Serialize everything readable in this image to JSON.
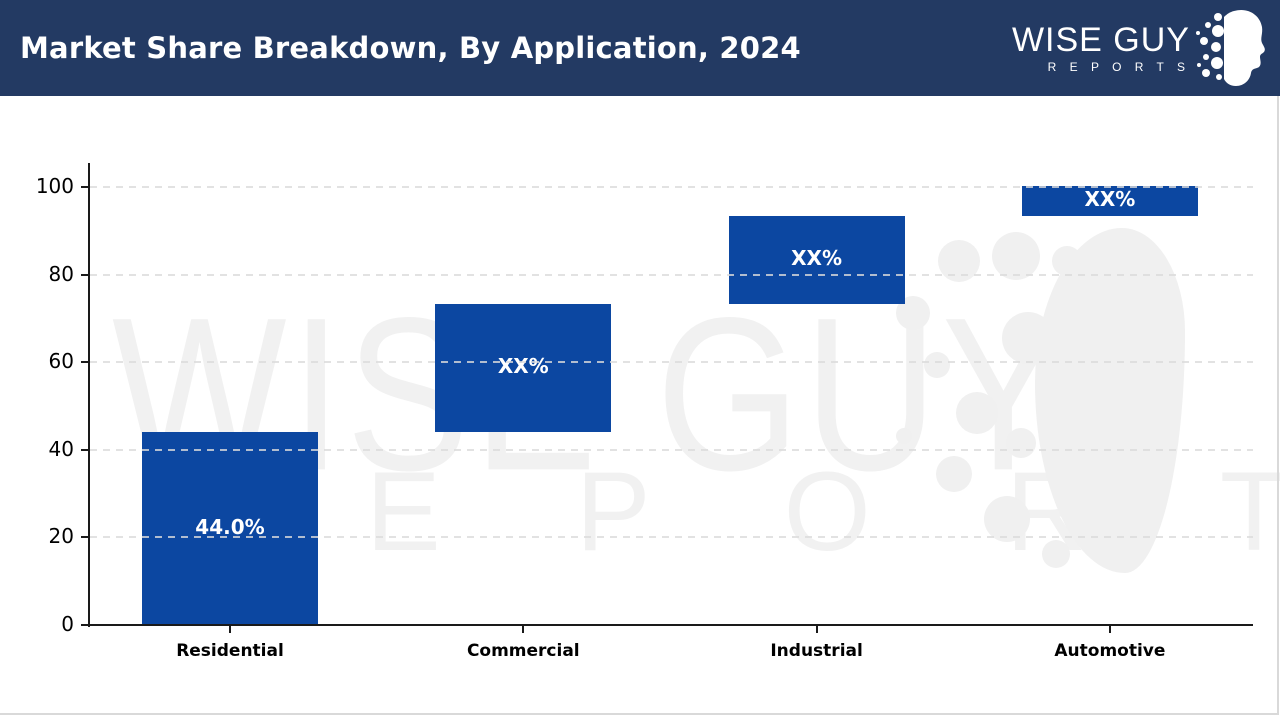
{
  "header": {
    "title": "Market Share Breakdown, By Application, 2024",
    "logo_line1": "WISE GUY",
    "logo_line2": "R E P O R T S"
  },
  "watermark": {
    "line1": "WISE GUY",
    "line2": "R E P O R T S"
  },
  "colors": {
    "header_bg": "#233a63",
    "bar": "#0c47a1",
    "bar_label": "#ffffff",
    "gridline": "#dbdbdb",
    "axis": "#1a1a1a",
    "watermark": "#f1f1f1"
  },
  "chart_data": {
    "type": "bar",
    "subtype": "waterfall",
    "title": "Market Share Breakdown, By Application, 2024",
    "categories": [
      "Residential",
      "Commercial",
      "Industrial",
      "Automotive"
    ],
    "segments": [
      {
        "category": "Residential",
        "start": 0,
        "end": 44.0,
        "display_label": "44.0%",
        "estimated_value": 44.0
      },
      {
        "category": "Commercial",
        "start": 44.0,
        "end": 73.4,
        "display_label": "XX%",
        "estimated_value": 29.4
      },
      {
        "category": "Industrial",
        "start": 73.4,
        "end": 93.3,
        "display_label": "XX%",
        "estimated_value": 19.9
      },
      {
        "category": "Automotive",
        "start": 93.3,
        "end": 100.3,
        "display_label": "XX%",
        "estimated_value": 7.0
      }
    ],
    "ylabel": "",
    "xlabel": "",
    "ylim": [
      0,
      105.5
    ],
    "yticks": [
      0,
      20,
      40,
      60,
      80,
      100
    ],
    "grid": "horizontal-dashed",
    "legend": "none",
    "units": "percent"
  }
}
